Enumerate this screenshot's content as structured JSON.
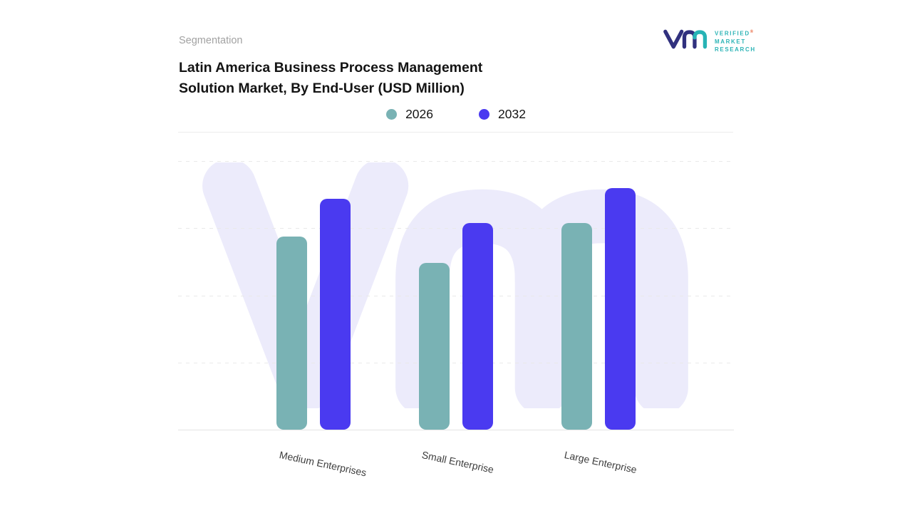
{
  "header": {
    "eyebrow": "Segmentation",
    "title_lines": [
      "Latin America Business Process Management",
      "Solution Market, By End-User (USD Million)"
    ]
  },
  "logo": {
    "brand_lines": [
      "VERIFIED",
      "MARKET",
      "RESEARCH"
    ],
    "registered_mark": "®",
    "brand_text_color": "#2db4b6",
    "mark_navy": "#31317e",
    "mark_teal": "#27b3b5"
  },
  "legend": {
    "items": [
      {
        "label": "2026",
        "color": "#79b2b4"
      },
      {
        "label": "2032",
        "color": "#4a3af0"
      }
    ]
  },
  "chart_data": {
    "type": "bar",
    "title": "Latin America Business Process Management Solution Market, By End-User (USD Million)",
    "categories": [
      "Medium Enterprises",
      "Small Enterprise",
      "Large Enterprise"
    ],
    "series": [
      {
        "name": "2026",
        "color": "#79b2b4",
        "values": [
          72,
          62,
          77
        ]
      },
      {
        "name": "2032",
        "color": "#4a3af0",
        "values": [
          86,
          77,
          90
        ]
      }
    ],
    "ylim": [
      0,
      100
    ],
    "value_axis_labels_visible": false,
    "grid": "horizontal-dashed",
    "legend_position": "top",
    "watermark": "vm"
  },
  "colors": {
    "gridline": "#e9e9e9",
    "axis_line": "#e4e4e4",
    "watermark": "#ecebfb"
  }
}
